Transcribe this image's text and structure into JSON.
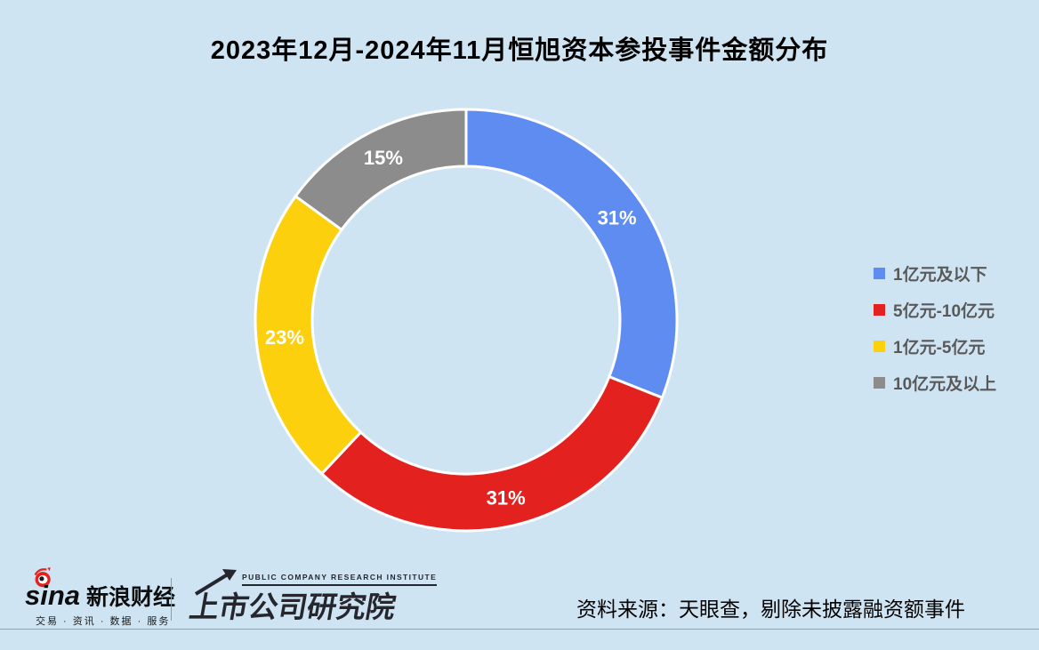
{
  "title": "2023年12月-2024年11月恒旭资本参投事件金额分布",
  "chart_data": {
    "type": "pie",
    "subtype": "donut",
    "title": "2023年12月-2024年11月恒旭资本参投事件金额分布",
    "categories": [
      "1亿元及以下",
      "5亿元-10亿元",
      "1亿元-5亿元",
      "10亿元及以上"
    ],
    "values": [
      31,
      31,
      23,
      15
    ],
    "unit": "%",
    "slice_labels": [
      "31%",
      "31%",
      "23%",
      "15%"
    ],
    "colors": [
      "#5f8cf0",
      "#e32220",
      "#fcd00d",
      "#8c8c8c"
    ],
    "start_angle_deg": 0,
    "direction": "clockwise",
    "legend_position": "right",
    "slice_label_color": "#ffffff",
    "background_color": "#cfe4f2"
  },
  "footer": {
    "sina": {
      "brand": "sina",
      "name": "新浪财经",
      "tagline": "交易 · 资讯 · 数据 · 服务"
    },
    "institute": {
      "subtitle": "PUBLIC COMPANY RESEARCH INSTITUTE",
      "name": "上市公司研究院"
    },
    "source_note": "资料来源：天眼查，剔除未披露融资额事件"
  }
}
